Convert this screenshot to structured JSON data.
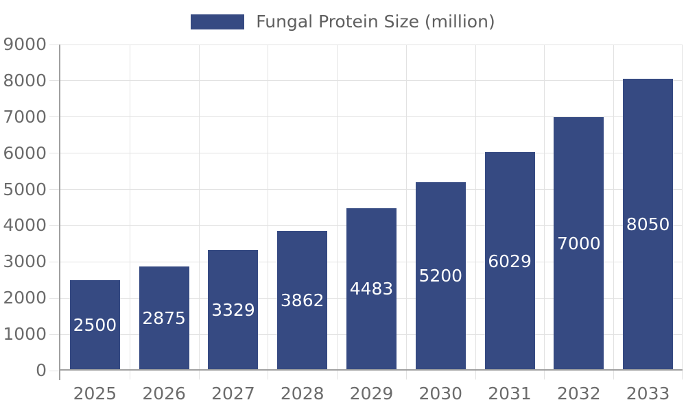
{
  "chart_data": {
    "type": "bar",
    "title": "",
    "legend": {
      "label": "Fungal Protein Size (million)",
      "position": "top-center"
    },
    "categories": [
      "2025",
      "2026",
      "2027",
      "2028",
      "2029",
      "2030",
      "2031",
      "2032",
      "2033"
    ],
    "series": [
      {
        "name": "Fungal Protein Size (million)",
        "values": [
          2500,
          2875,
          3329,
          3862,
          4483,
          5200,
          6029,
          7000,
          8050
        ]
      }
    ],
    "xlabel": "",
    "ylabel": "",
    "ylim": [
      0,
      9000
    ],
    "ytick_step": 1000,
    "yticks": [
      0,
      1000,
      2000,
      3000,
      4000,
      5000,
      6000,
      7000,
      8000,
      9000
    ],
    "grid": true,
    "value_labels": "inside-bar-centered-white",
    "colors": {
      "bar": "#364a82",
      "value_label": "#ffffff",
      "axis_label": "#6b6b6b",
      "legend_text": "#5f5f5f",
      "gridline": "#e2e2e2",
      "axis_line": "#a0a0a0",
      "background": "#ffffff"
    }
  }
}
